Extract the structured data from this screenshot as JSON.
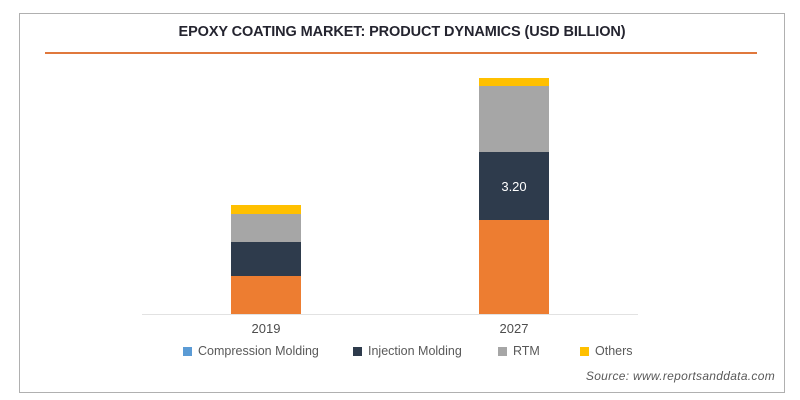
{
  "title": "EPOXY COATING MARKET: PRODUCT DYNAMICS (USD BILLION)",
  "source": "Source: www.reportsanddata.com",
  "colors": {
    "title_text": "#24242f",
    "title_divider": "#e0783c",
    "frame_border": "#b0b0b0",
    "axis_line": "#e2e2e2",
    "axis_label_text": "#4d4d4d",
    "legend_text": "#595959",
    "bar_value_label_text": "#ffffff",
    "background": "#ffffff"
  },
  "chart_data": {
    "type": "bar",
    "stacked": true,
    "title": "EPOXY COATING MARKET: PRODUCT DYNAMICS (USD BILLION)",
    "xlabel": "",
    "ylabel": "",
    "value_unit": "USD Billion",
    "categories": [
      "2019",
      "2027"
    ],
    "series": [
      {
        "name": "Compression Molding",
        "legend_color": "#5b9bd5",
        "bar_color": "#ed7d31",
        "values": [
          1.8,
          4.4
        ]
      },
      {
        "name": "Injection Molding",
        "legend_color": "#2e3b4c",
        "bar_color": "#2e3b4c",
        "values": [
          1.6,
          3.2
        ]
      },
      {
        "name": "RTM",
        "legend_color": "#a6a6a6",
        "bar_color": "#a6a6a6",
        "values": [
          1.3,
          3.1
        ]
      },
      {
        "name": "Others",
        "legend_color": "#ffc000",
        "bar_color": "#ffc000",
        "values": [
          0.4,
          0.4
        ]
      }
    ],
    "data_labels": [
      {
        "category": "2027",
        "series": "Injection Molding",
        "text": "3.20"
      }
    ],
    "totals": {
      "2019": 5.1,
      "2027": 11.1
    },
    "ylim": [
      0,
      11.5
    ],
    "gridlines": false,
    "y_axis_visible": false,
    "legend_position": "bottom"
  }
}
